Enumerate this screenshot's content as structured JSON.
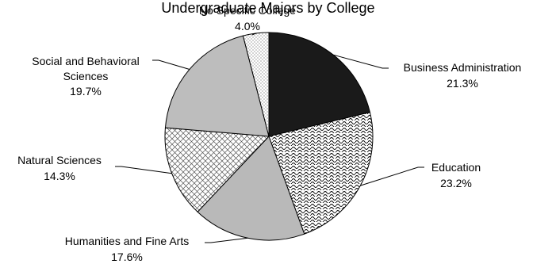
{
  "chart_data": {
    "type": "pie",
    "title": "Undergraduate Majors by College",
    "slices": [
      {
        "name": "Business Administration",
        "value": 21.3,
        "label": "21.3%",
        "fill": "#1a1a1a",
        "pattern": "solid"
      },
      {
        "name": "Education",
        "value": 23.2,
        "label": "23.2%",
        "fill": "#ffffff",
        "pattern": "wave"
      },
      {
        "name": "Humanities and Fine Arts",
        "value": 17.6,
        "label": "17.6%",
        "fill": "#b9b9b9",
        "pattern": "solid"
      },
      {
        "name": "Natural Sciences",
        "value": 14.3,
        "label": "14.3%",
        "fill": "#ffffff",
        "pattern": "crosshatch"
      },
      {
        "name": "Social and Behavioral Sciences",
        "value": 19.7,
        "label": "19.7%",
        "fill": "#bdbdbd",
        "pattern": "solid"
      },
      {
        "name": "No Specific College",
        "value": 4.0,
        "label": "4.0%",
        "fill": "#ffffff",
        "pattern": "dots"
      }
    ],
    "start_angle": "12 o'clock",
    "direction": "clockwise",
    "legend": "none",
    "labels": "outside with leader lines"
  }
}
